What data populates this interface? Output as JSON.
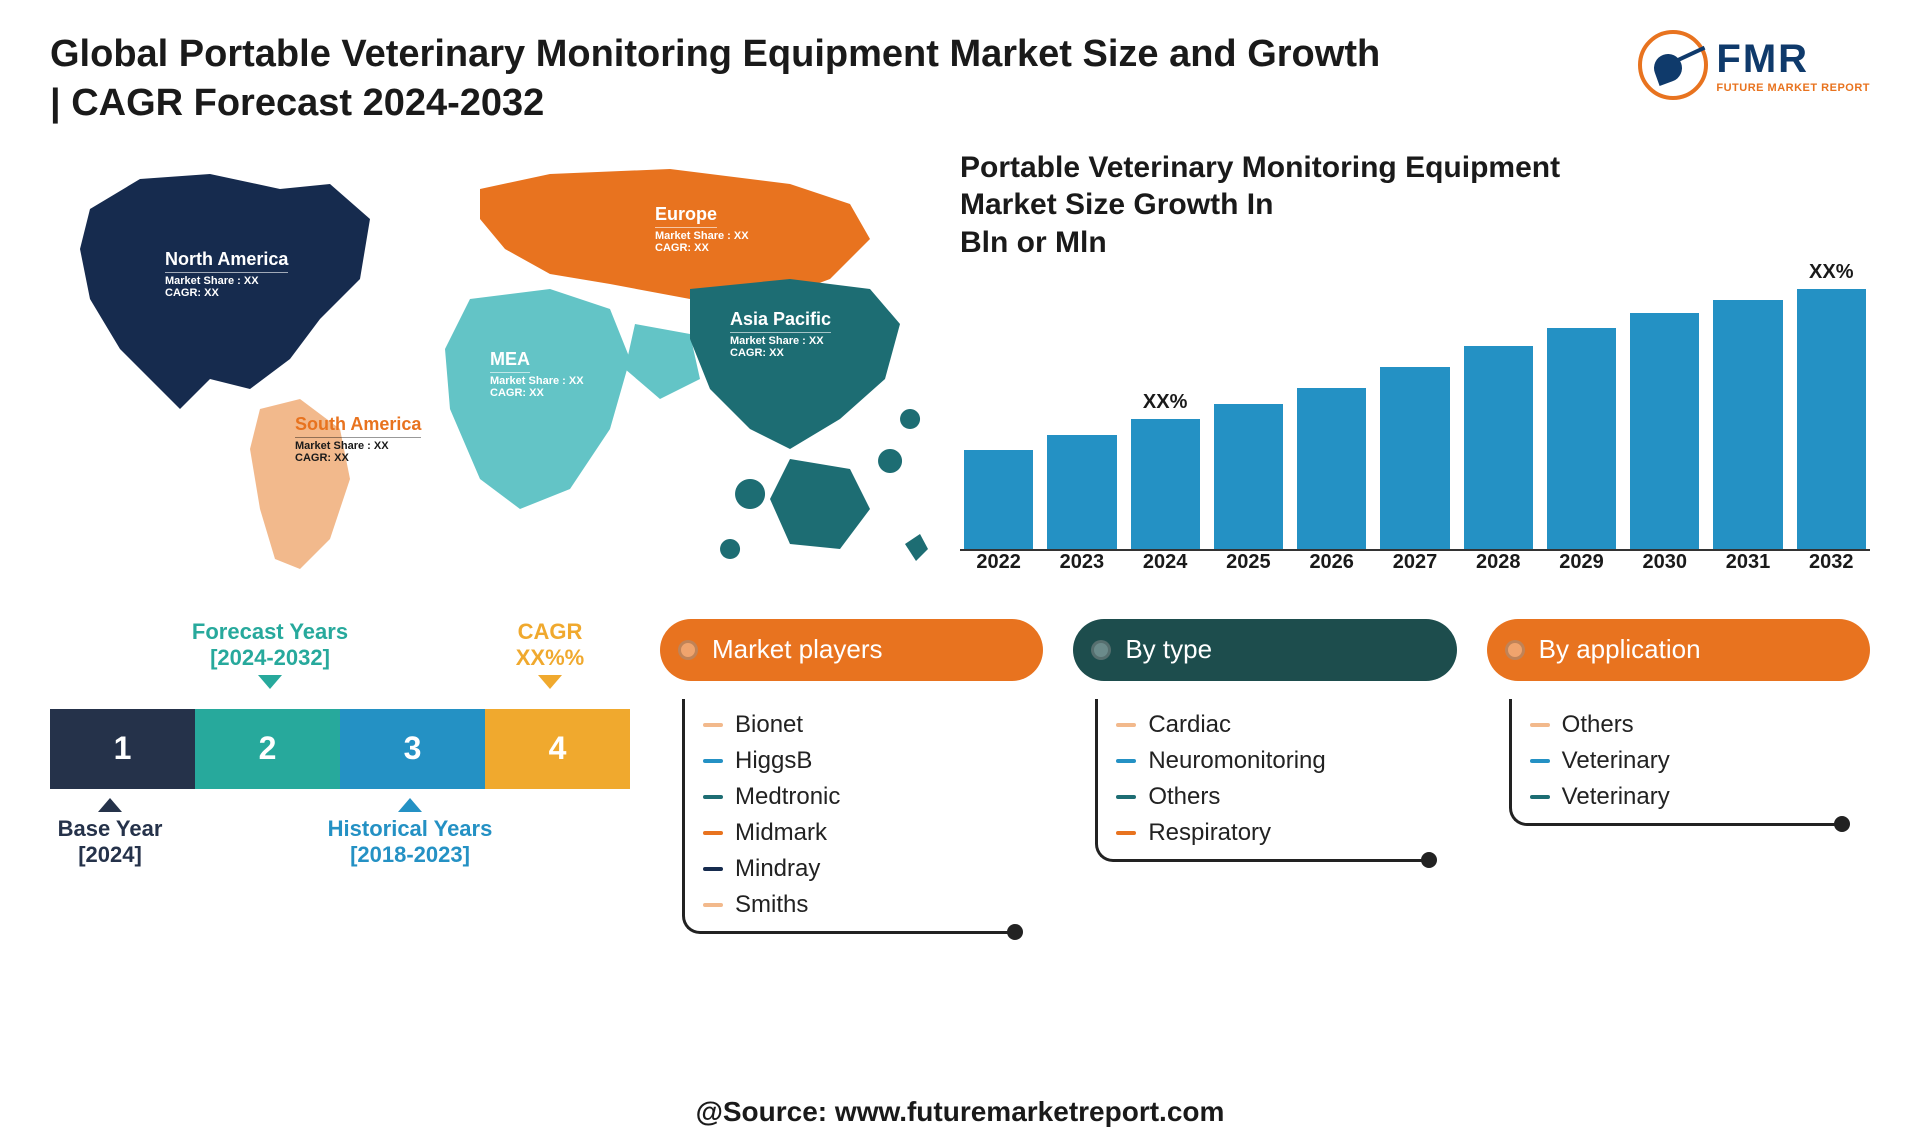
{
  "title_line1": "Global Portable Veterinary Monitoring Equipment Market Size and Growth",
  "title_line2": " | CAGR Forecast 2024-2032",
  "logo": {
    "fmr": "FMR",
    "sub": "FUTURE MARKET REPORT"
  },
  "colors": {
    "navy": "#162b4e",
    "teal_dark": "#1d6d73",
    "teal_light": "#63c4c6",
    "orange": "#e8731f",
    "peach": "#f2b98c",
    "bar": "#2491c4",
    "pill_orange": "#e8731f",
    "pill_teal": "#1d4d4d",
    "tick_colors": [
      "#f2b98c",
      "#2491c4",
      "#1d6d73",
      "#e8731f",
      "#162b4e",
      "#f2b98c"
    ]
  },
  "regions": {
    "na": {
      "name": "North America",
      "share": "Market Share : XX",
      "cagr": "CAGR: XX"
    },
    "sa": {
      "name": "South America",
      "share": "Market Share : XX",
      "cagr": "CAGR: XX"
    },
    "eu": {
      "name": "Europe",
      "share": "Market Share : XX",
      "cagr": "CAGR: XX"
    },
    "mea": {
      "name": "MEA",
      "share": "Market Share : XX",
      "cagr": "CAGR: XX"
    },
    "apac": {
      "name": "Asia Pacific",
      "share": "Market Share : XX",
      "cagr": "CAGR: XX"
    }
  },
  "chart": {
    "title_l1": "Portable Veterinary Monitoring Equipment",
    "title_l2": "Market Size Growth In",
    "title_l3": "Bln or Mln",
    "years": [
      "2022",
      "2023",
      "2024",
      "2025",
      "2026",
      "2027",
      "2028",
      "2029",
      "2030",
      "2031",
      "2032"
    ],
    "heights_pct": [
      38,
      44,
      50,
      56,
      62,
      70,
      78,
      85,
      91,
      96,
      100
    ],
    "ann_2024": "XX%",
    "ann_2032": "XX%"
  },
  "timeline": {
    "forecast_lbl": "Forecast Years",
    "forecast_val": "[2024-2032]",
    "cagr_lbl": "CAGR",
    "cagr_val": "XX%%",
    "base_lbl": "Base Year",
    "base_val": "[2024]",
    "hist_lbl": "Historical Years",
    "hist_val": "[2018-2023]",
    "nums": [
      "1",
      "2",
      "3",
      "4"
    ]
  },
  "pills": {
    "players": {
      "title": "Market players",
      "color": "#e8731f",
      "items": [
        "Bionet",
        "HiggsB",
        "Medtronic",
        "Midmark",
        "Mindray",
        "Smiths"
      ]
    },
    "type": {
      "title": "By type",
      "color": "#1d4d4d",
      "items": [
        "Cardiac",
        "Neuromonitoring",
        "Others",
        "Respiratory"
      ]
    },
    "app": {
      "title": "By application",
      "color": "#e8731f",
      "items": [
        "Others",
        "Veterinary",
        "Veterinary"
      ]
    }
  },
  "source": "@Source: www.futuremarketreport.com"
}
